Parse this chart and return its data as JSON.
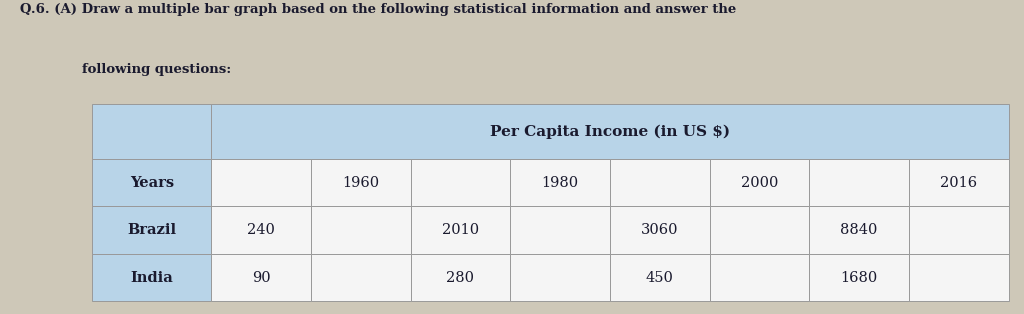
{
  "title_line1": "Q.6. (A) Draw a multiple bar graph based on the following statistical information and answer the",
  "title_line2": "following questions:",
  "table_header": "Per Capita Income (in US $)",
  "col_labels": [
    "Years",
    "1960",
    "1980",
    "2000",
    "2016"
  ],
  "rows": [
    {
      "label": "Brazil",
      "values": [
        240,
        2010,
        3060,
        8840
      ]
    },
    {
      "label": "India",
      "values": [
        90,
        280,
        450,
        1680
      ]
    }
  ],
  "header_bg": "#b8d4e8",
  "cell_bg": "#e8e8e8",
  "white_bg": "#f0f0f0",
  "page_bg": "#d0c8b8",
  "text_dark": "#1a1a2e",
  "border_color": "#999999",
  "title_fontsize": 9.5,
  "table_header_fontsize": 11,
  "table_fontsize": 10.5
}
